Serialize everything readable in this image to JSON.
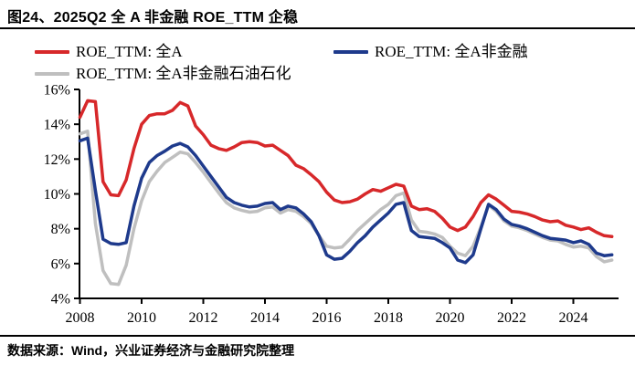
{
  "header": {
    "title": "图24、2025Q2 全 A 非金融 ROE_TTM 企稳"
  },
  "legend": [
    {
      "label": "ROE_TTM: 全A",
      "color": "#d7282a"
    },
    {
      "label": "ROE_TTM: 全A非金融",
      "color": "#1e3a8c"
    },
    {
      "label": "ROE_TTM: 全A非金融石油石化",
      "color": "#bfbfbf"
    }
  ],
  "footer": {
    "source": "数据来源：Wind，兴业证券经济与金融研究院整理"
  },
  "chart_data": {
    "type": "line",
    "title": "ROE_TTM 全A / 全A非金融 / 全A非金融石油石化",
    "xlabel": "",
    "ylabel": "",
    "y_unit": "%",
    "ylim": [
      4,
      16
    ],
    "y_tick_labels": [
      "16%",
      "14%",
      "12%",
      "10%",
      "8%",
      "6%",
      "4%"
    ],
    "x_tick_labels": [
      "2008",
      "2010",
      "2012",
      "2014",
      "2016",
      "2018",
      "2020",
      "2022",
      "2024"
    ],
    "grid": false,
    "legend_position": "top-left",
    "x": [
      "2008Q1",
      "2008Q2",
      "2008Q3",
      "2008Q4",
      "2009Q1",
      "2009Q2",
      "2009Q3",
      "2009Q4",
      "2010Q1",
      "2010Q2",
      "2010Q3",
      "2010Q4",
      "2011Q1",
      "2011Q2",
      "2011Q3",
      "2011Q4",
      "2012Q1",
      "2012Q2",
      "2012Q3",
      "2012Q4",
      "2013Q1",
      "2013Q2",
      "2013Q3",
      "2013Q4",
      "2014Q1",
      "2014Q2",
      "2014Q3",
      "2014Q4",
      "2015Q1",
      "2015Q2",
      "2015Q3",
      "2015Q4",
      "2016Q1",
      "2016Q2",
      "2016Q3",
      "2016Q4",
      "2017Q1",
      "2017Q2",
      "2017Q3",
      "2017Q4",
      "2018Q1",
      "2018Q2",
      "2018Q3",
      "2018Q4",
      "2019Q1",
      "2019Q2",
      "2019Q3",
      "2019Q4",
      "2020Q1",
      "2020Q2",
      "2020Q3",
      "2020Q4",
      "2021Q1",
      "2021Q2",
      "2021Q3",
      "2021Q4",
      "2022Q1",
      "2022Q2",
      "2022Q3",
      "2022Q4",
      "2023Q1",
      "2023Q2",
      "2023Q3",
      "2023Q4",
      "2024Q1",
      "2024Q2",
      "2024Q3",
      "2024Q4",
      "2025Q1",
      "2025Q2"
    ],
    "series": [
      {
        "name": "ROE_TTM: 全A",
        "color": "#d7282a",
        "values": [
          14.4,
          15.35,
          15.3,
          10.7,
          9.95,
          9.9,
          10.8,
          12.6,
          14.0,
          14.5,
          14.6,
          14.6,
          14.8,
          15.25,
          15.05,
          13.9,
          13.4,
          12.8,
          12.6,
          12.5,
          12.7,
          12.95,
          13.0,
          12.95,
          12.75,
          12.8,
          12.5,
          12.2,
          11.65,
          11.45,
          11.1,
          10.7,
          10.1,
          9.65,
          9.5,
          9.55,
          9.7,
          10.0,
          10.25,
          10.15,
          10.35,
          10.55,
          10.45,
          9.3,
          9.1,
          9.15,
          9.0,
          8.6,
          8.1,
          7.9,
          8.1,
          8.7,
          9.5,
          9.95,
          9.7,
          9.35,
          9.0,
          8.95,
          8.85,
          8.7,
          8.5,
          8.4,
          8.45,
          8.2,
          8.1,
          7.95,
          8.05,
          7.8,
          7.6,
          7.55
        ]
      },
      {
        "name": "ROE_TTM: 全A非金融",
        "color": "#1e3a8c",
        "values": [
          13.05,
          13.2,
          10.2,
          7.4,
          7.15,
          7.1,
          7.2,
          9.3,
          10.9,
          11.8,
          12.2,
          12.45,
          12.75,
          12.9,
          12.7,
          12.2,
          11.6,
          11.0,
          10.4,
          9.8,
          9.5,
          9.35,
          9.25,
          9.3,
          9.45,
          9.5,
          9.1,
          9.3,
          9.2,
          8.85,
          8.4,
          7.6,
          6.5,
          6.25,
          6.3,
          6.7,
          7.2,
          7.6,
          8.1,
          8.5,
          8.9,
          9.4,
          9.5,
          7.9,
          7.55,
          7.5,
          7.45,
          7.2,
          6.9,
          6.2,
          6.05,
          6.5,
          8.0,
          9.4,
          9.1,
          8.55,
          8.25,
          8.15,
          8.0,
          7.8,
          7.6,
          7.45,
          7.4,
          7.35,
          7.2,
          7.3,
          7.1,
          6.6,
          6.45,
          6.5
        ]
      },
      {
        "name": "ROE_TTM: 全A非金融石油石化",
        "color": "#bfbfbf",
        "values": [
          13.45,
          13.6,
          8.3,
          5.6,
          4.85,
          4.8,
          5.9,
          8.0,
          9.6,
          10.7,
          11.3,
          11.8,
          12.1,
          12.4,
          12.3,
          11.8,
          11.25,
          10.65,
          10.05,
          9.5,
          9.2,
          9.05,
          8.95,
          9.0,
          9.2,
          9.25,
          8.9,
          9.1,
          9.0,
          8.7,
          8.3,
          7.6,
          7.0,
          6.9,
          6.95,
          7.4,
          7.9,
          8.3,
          8.7,
          9.1,
          9.4,
          9.9,
          10.05,
          8.5,
          7.85,
          7.8,
          7.7,
          7.5,
          7.0,
          6.6,
          6.45,
          7.0,
          8.1,
          9.35,
          9.0,
          8.45,
          8.15,
          8.05,
          7.9,
          7.7,
          7.5,
          7.35,
          7.3,
          7.1,
          6.95,
          7.0,
          6.9,
          6.4,
          6.1,
          6.2
        ]
      }
    ]
  }
}
